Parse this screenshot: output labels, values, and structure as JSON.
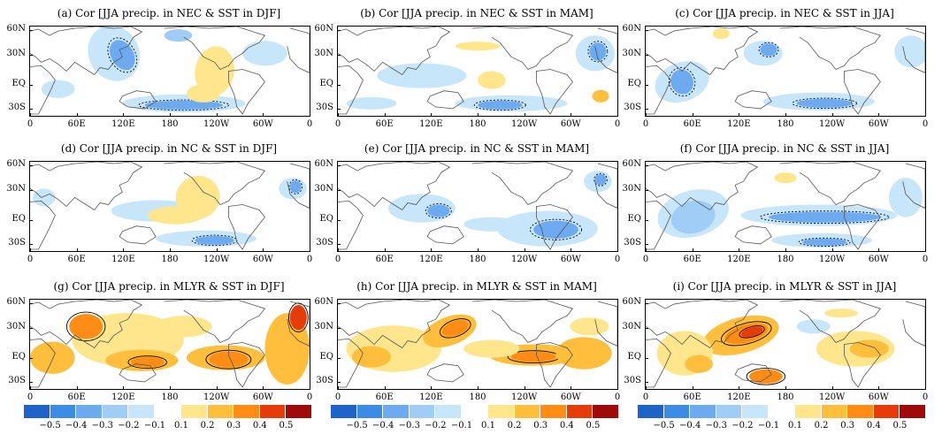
{
  "titles": [
    "(a) Cor [JJA precip. in NEC & SST in DJF]",
    "(b) Cor [JJA precip. in NEC & SST in MAM]",
    "(c) Cor [JJA precip. in NEC & SST in JJA]",
    "(d) Cor [JJA precip. in NC & SST in DJF]",
    "(e) Cor [JJA precip. in NC & SST in MAM]",
    "(f) Cor [JJA precip. in NC & SST in JJA]",
    "(g) Cor [JJA precip. in MLYR & SST in DJF]",
    "(h) Cor [JJA precip. in MLYR & SST in MAM]",
    "(i) Cor [JJA precip. in MLYR & SST in JJA]"
  ],
  "lat_labels": [
    "60N",
    "30N",
    "EQ",
    "30S"
  ],
  "lon_labels": [
    "0",
    "60E",
    "120E",
    "180",
    "120W",
    "60W",
    "0"
  ],
  "colorbar": {
    "neg_colors": [
      "#1e64c8",
      "#3c8ce6",
      "#6eaaf0",
      "#a0cdf5",
      "#c8e6fa"
    ],
    "pos_colors": [
      "#ffe68c",
      "#ffbe3c",
      "#ff8c14",
      "#e63c0a",
      "#a00a0a"
    ],
    "neg_labels": [
      "−0.5",
      "−0.4",
      "−0.3",
      "−0.2",
      "−0.1"
    ],
    "pos_labels": [
      "0.1",
      "0.2",
      "0.3",
      "0.4",
      "0.5"
    ]
  }
}
